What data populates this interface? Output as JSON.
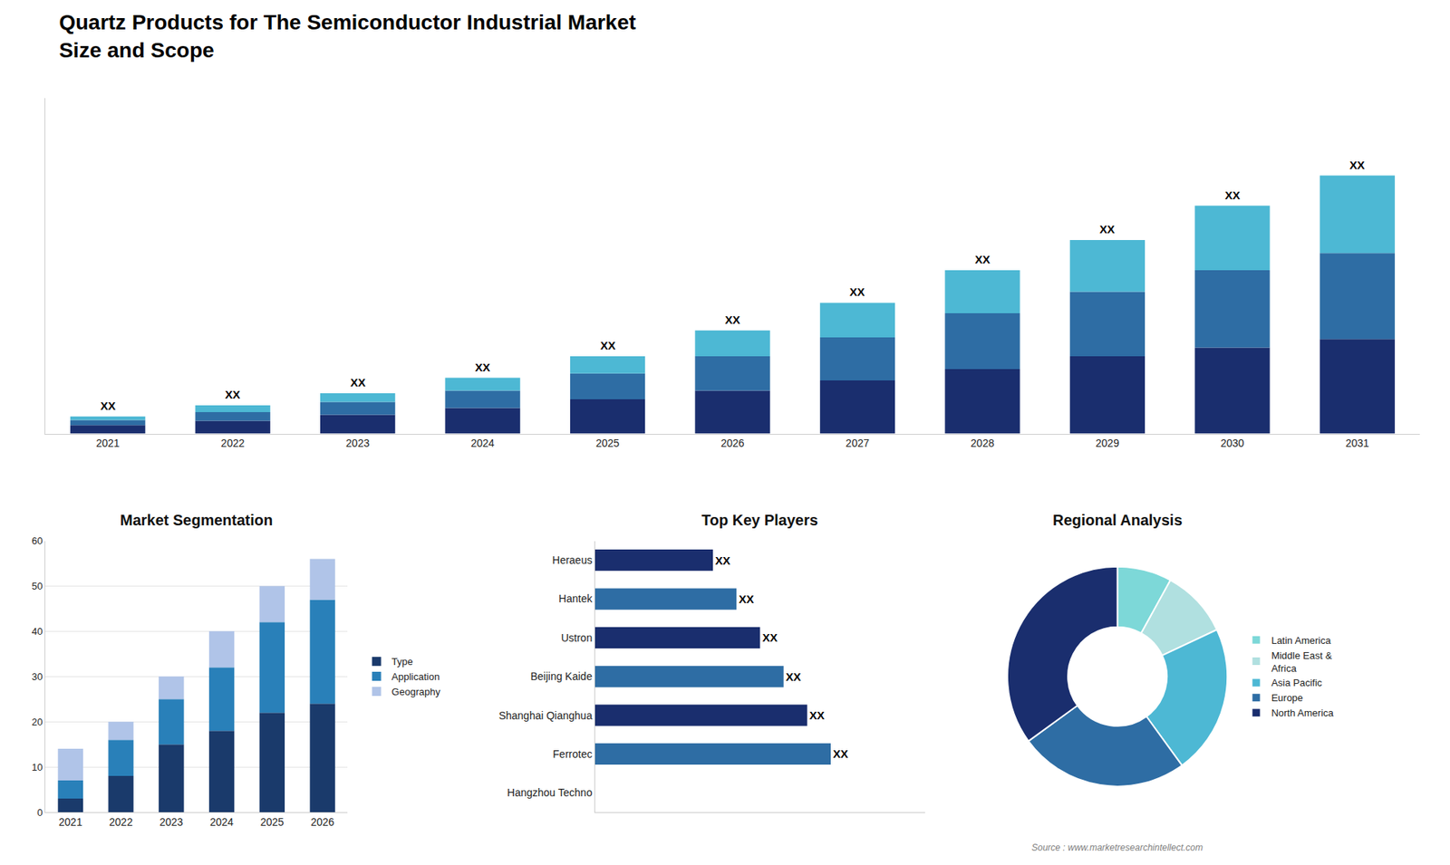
{
  "chart_data": [
    {
      "type": "bar",
      "title": "Quartz Products for The Semiconductor Industrial Market",
      "subtitle": "Size and Scope",
      "stacked": true,
      "categories": [
        "2021",
        "2022",
        "2023",
        "2024",
        "2025",
        "2026",
        "2027",
        "2028",
        "2029",
        "2030",
        "2031"
      ],
      "series": [
        {
          "color": "#1a2e6e",
          "values": [
            1.0,
            1.5,
            2.2,
            3.0,
            4.0,
            5.0,
            6.2,
            7.5,
            9.0,
            10.0,
            11.0
          ]
        },
        {
          "color": "#2e6da4",
          "values": [
            0.6,
            1.0,
            1.5,
            2.0,
            3.0,
            4.0,
            5.0,
            6.5,
            7.5,
            9.0,
            10.0
          ]
        },
        {
          "color": "#4db8d4",
          "values": [
            0.4,
            0.8,
            1.0,
            1.5,
            2.0,
            3.0,
            4.0,
            5.0,
            6.0,
            7.5,
            9.0
          ]
        }
      ],
      "ylim": [
        0,
        39
      ],
      "tick_labels": "x",
      "grid": false,
      "annotations": [
        {
          "x": "2021",
          "text": "XX"
        },
        {
          "x": "2022",
          "text": "XX"
        },
        {
          "x": "2023",
          "text": "XX"
        },
        {
          "x": "2024",
          "text": "XX"
        },
        {
          "x": "2025",
          "text": "XX"
        },
        {
          "x": "2026",
          "text": "XX"
        },
        {
          "x": "2027",
          "text": "XX"
        },
        {
          "x": "2028",
          "text": "XX"
        },
        {
          "x": "2029",
          "text": "XX"
        },
        {
          "x": "2030",
          "text": "XX"
        },
        {
          "x": "2031",
          "text": "XX"
        },
        {
          "text": "Source : www.marketresearchintellect.com"
        }
      ]
    },
    {
      "type": "bar",
      "title": "Market Segmentation",
      "stacked": true,
      "categories": [
        "2021",
        "2022",
        "2023",
        "2024",
        "2025",
        "2026"
      ],
      "series": [
        {
          "name": "Type",
          "color": "#1a3a6b",
          "values": [
            3,
            8,
            15,
            18,
            22,
            24
          ]
        },
        {
          "name": "Application",
          "color": "#2980b9",
          "values": [
            4,
            8,
            10,
            14,
            20,
            23
          ]
        },
        {
          "name": "Geography",
          "color": "#b0c4e8",
          "values": [
            7,
            4,
            5,
            8,
            8,
            9
          ]
        }
      ],
      "ylim": [
        0,
        60
      ],
      "yticks": [
        0,
        10,
        20,
        30,
        40,
        50,
        60
      ],
      "grid": true,
      "legend": "right"
    },
    {
      "type": "bar",
      "title": "Top Key Players",
      "orientation": "horizontal",
      "categories": [
        "Hangzhou Techno",
        "Ferrotec",
        "Shanghai Qianghua",
        "Beijing Kaide",
        "Ustron",
        "Hantek",
        "Heraeus"
      ],
      "values": [
        0,
        10,
        9,
        8,
        7,
        6,
        5
      ],
      "value_labels": [
        null,
        "XX",
        "XX",
        "XX",
        "XX",
        "XX",
        "XX"
      ],
      "colors": [
        "#1a2e6e",
        "#2e6da4",
        "#1a2e6e",
        "#2e6da4",
        "#1a2e6e",
        "#2e6da4",
        "#1a2e6e"
      ],
      "xlim": [
        0,
        14
      ],
      "tick_labels": "y",
      "grid": false,
      "data_labels": true
    },
    {
      "type": "donut",
      "title": "Regional Analysis",
      "categories": [
        "Latin America",
        "Middle East &\nAfrica",
        "Asia Pacific",
        "Europe",
        "North America"
      ],
      "values": [
        8,
        10,
        22,
        25,
        35
      ],
      "colors": [
        "#7dd8d8",
        "#b0e0e0",
        "#4db8d4",
        "#2e6da4",
        "#1a2e6e"
      ],
      "legend": "right"
    }
  ]
}
